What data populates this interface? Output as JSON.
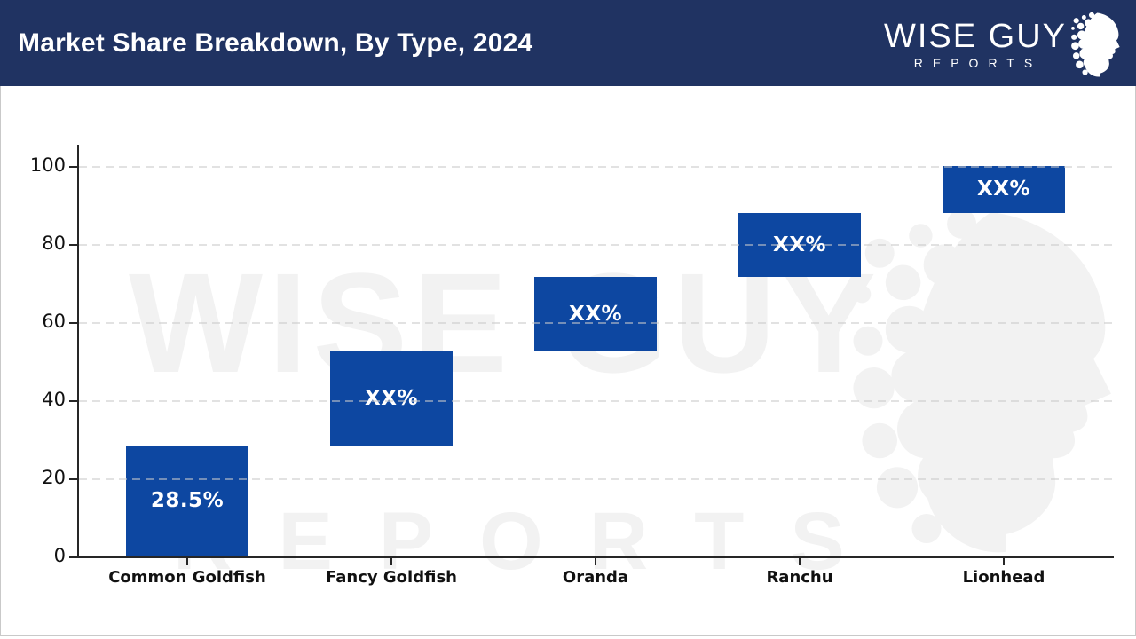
{
  "header": {
    "title": "Market Share Breakdown, By Type, 2024",
    "bg_color": "#203362",
    "logo": {
      "line1": "WISE GUY",
      "line2": "REPORTS"
    }
  },
  "watermark": {
    "line1": "WISE GUY",
    "line2": "REPORTS"
  },
  "chart_data": {
    "type": "bar",
    "subtype": "waterfall",
    "title": "Market Share Breakdown, By Type, 2024",
    "categories": [
      "Common Goldfish",
      "Fancy Goldfish",
      "Oranda",
      "Ranchu",
      "Lionhead"
    ],
    "segments": [
      {
        "category": "Common Goldfish",
        "start": 0,
        "end": 28.5,
        "label": "28.5%"
      },
      {
        "category": "Fancy Goldfish",
        "start": 28.5,
        "end": 52.5,
        "label": "XX%"
      },
      {
        "category": "Oranda",
        "start": 52.5,
        "end": 71.5,
        "label": "XX%"
      },
      {
        "category": "Ranchu",
        "start": 71.5,
        "end": 88,
        "label": "XX%"
      },
      {
        "category": "Lionhead",
        "start": 88,
        "end": 100,
        "label": "XX%"
      }
    ],
    "yticks": [
      0,
      20,
      40,
      60,
      80,
      100
    ],
    "ylim": [
      0,
      105
    ],
    "xlabel": "",
    "ylabel": "",
    "grid": {
      "axis": "y",
      "style": "dashed"
    },
    "legend": "none",
    "bar_color": "#0d47a1",
    "bar_label_color": "#ffffff",
    "axis_color": "#262626"
  }
}
